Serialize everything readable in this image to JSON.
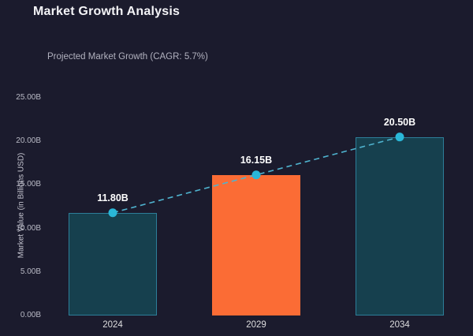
{
  "header": {
    "title": "Market Growth Analysis",
    "subtitle": "Projected Market Growth (CAGR: 5.7%)"
  },
  "chart_data": {
    "type": "bar",
    "title": "Market Growth Analysis",
    "subtitle": "Projected Market Growth (CAGR: 5.7%)",
    "categories": [
      "2024",
      "2029",
      "2034"
    ],
    "values": [
      11.8,
      16.15,
      20.5
    ],
    "value_labels": [
      "11.80B",
      "16.15B",
      "20.50B"
    ],
    "xlabel": "",
    "ylabel": "Market Value (in Billions USD)",
    "ylim": [
      0,
      25
    ],
    "yticks": [
      0,
      5,
      10,
      15,
      20,
      25
    ],
    "ytick_labels": [
      "0.00B",
      "5.00B",
      "10.00B",
      "15.00B",
      "20.00B",
      "25.00B"
    ],
    "grid": false,
    "legend": "none",
    "colors": {
      "background": "#1b1b2d",
      "bar_fill": [
        "#16404e",
        "#fb6c35",
        "#16404e"
      ],
      "bar_border": [
        "#2d7e99",
        "#fb6c35",
        "#2d7e99"
      ],
      "trend_line": "#4fb3cf",
      "marker": "#2ab7d8",
      "title_text": "#f4f4f7",
      "axis_text": "#b9bac5"
    },
    "overlay": {
      "type": "line",
      "style": "dashed",
      "values": [
        11.8,
        16.15,
        20.5
      ]
    }
  }
}
